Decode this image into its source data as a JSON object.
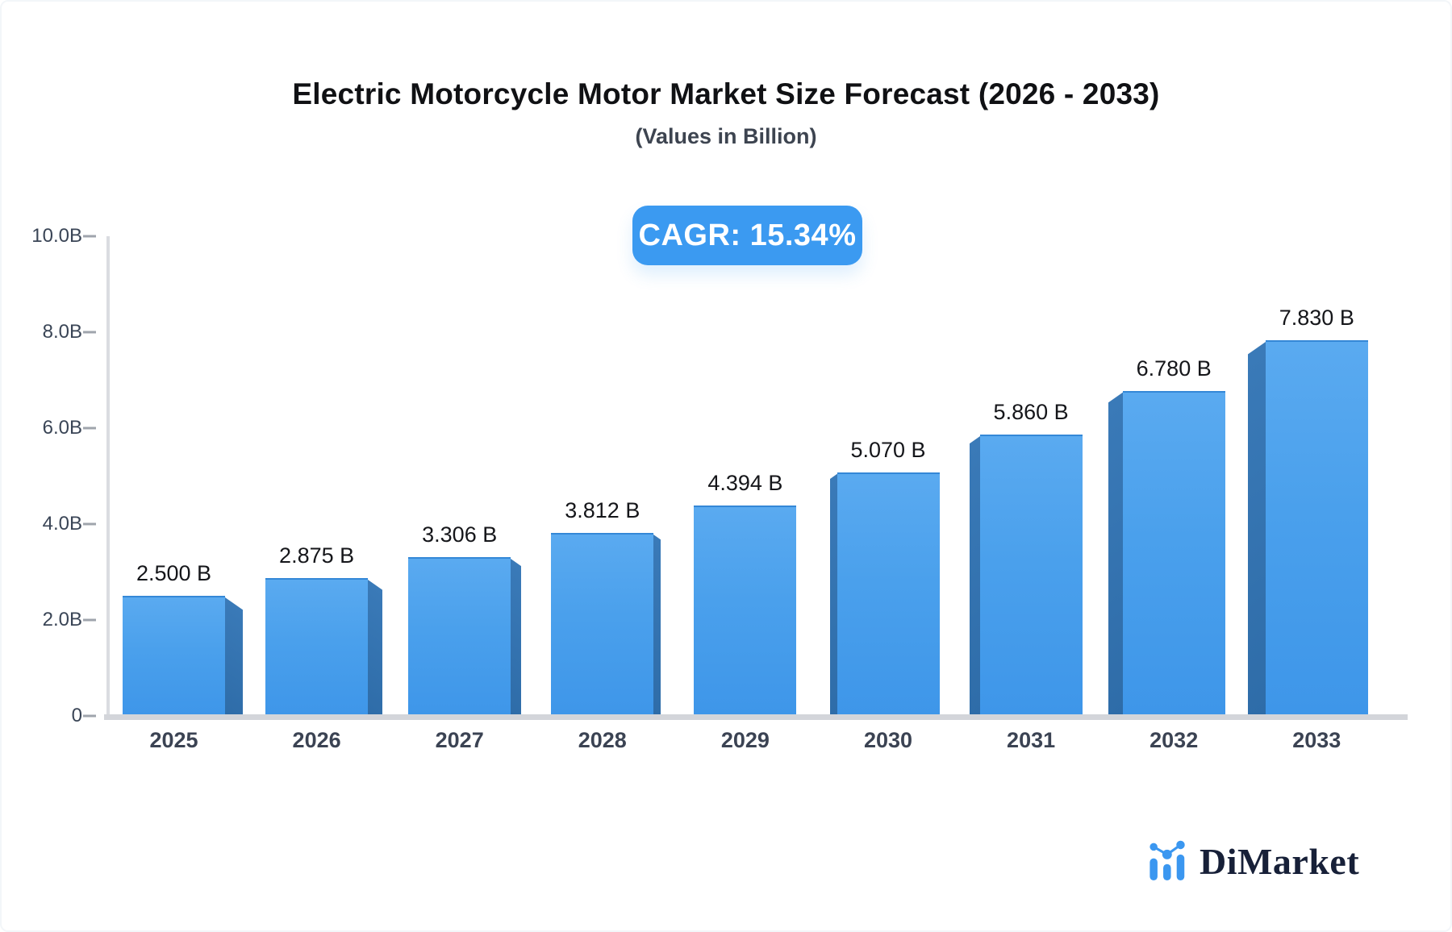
{
  "title": "Electric Motorcycle Motor Market Size Forecast (2026 - 2033)",
  "subtitle": "(Values in Billion)",
  "badge": {
    "label": "CAGR: 15.34%",
    "bg_color": "#3b9af1",
    "text_color": "#ffffff"
  },
  "logo": {
    "text": "DiMarket",
    "icon": "mini-bar-line-chart-icon",
    "icon_color": "#3b97f0",
    "text_color": "#172038"
  },
  "chart_data": {
    "type": "bar",
    "title": "Electric Motorcycle Motor Market Size Forecast (2026 - 2033)",
    "subtitle": "(Values in Billion)",
    "categories": [
      "2025",
      "2026",
      "2027",
      "2028",
      "2029",
      "2030",
      "2031",
      "2032",
      "2033"
    ],
    "values": [
      2.5,
      2.875,
      3.306,
      3.812,
      4.394,
      5.07,
      5.86,
      6.78,
      7.83
    ],
    "bar_labels": [
      "2.500 B",
      "2.875 B",
      "3.306 B",
      "3.812 B",
      "4.394 B",
      "5.070 B",
      "5.860 B",
      "6.780 B",
      "7.830 B"
    ],
    "xlabel": "",
    "ylabel": "",
    "ylim": [
      0,
      10
    ],
    "y_ticks": [
      {
        "value": 0,
        "label": "0"
      },
      {
        "value": 2,
        "label": "2.0B"
      },
      {
        "value": 4,
        "label": "4.0B"
      },
      {
        "value": 6,
        "label": "6.0B"
      },
      {
        "value": 8,
        "label": "8.0B"
      },
      {
        "value": 10,
        "label": "10.0B"
      }
    ],
    "grid": false,
    "legend": false,
    "style": "3d-perspective-bars",
    "bar_color_top": "#5aaaf0",
    "bar_color_bottom": "#3e96e9",
    "bar_side_color": "#2e6ca8"
  }
}
